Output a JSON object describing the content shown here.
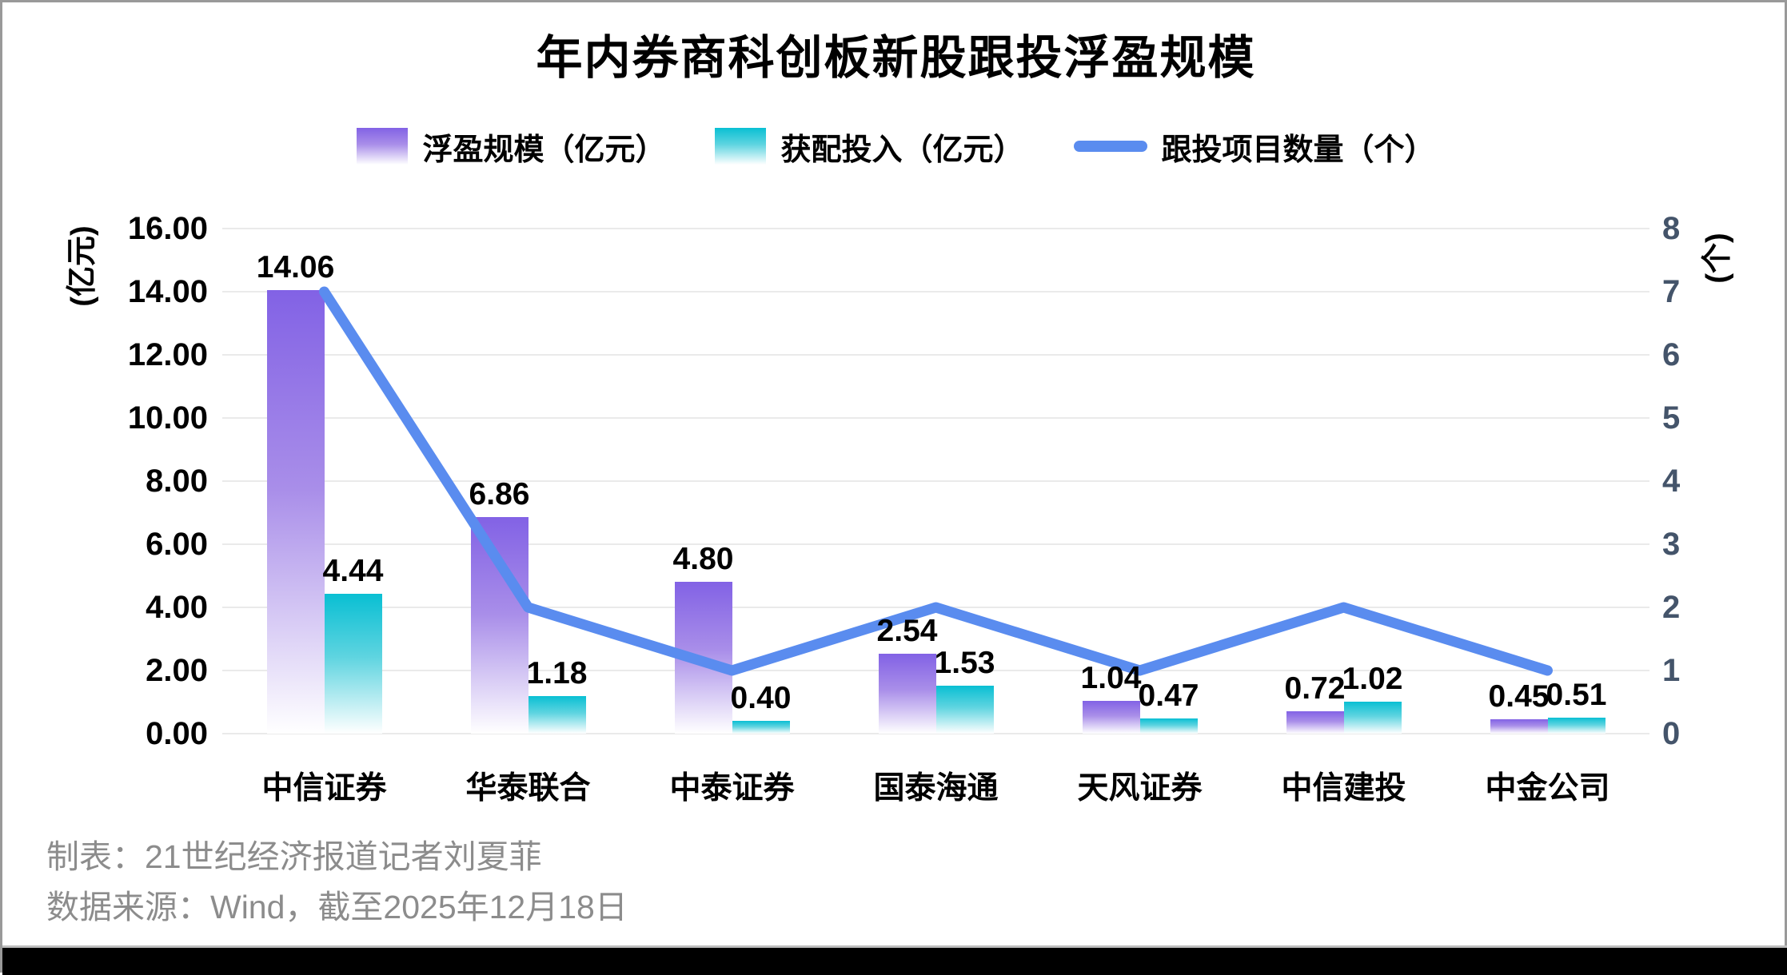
{
  "page": {
    "title": "年内券商科创板新股跟投浮盈规模",
    "footer_line1": "制表：21世纪经济报道记者刘夏菲",
    "footer_line2": "数据来源：Wind，截至2025年12月18日"
  },
  "chart_data": {
    "type": "bar",
    "subtype": "bar-line-combo",
    "categories": [
      "中信证券",
      "华泰联合",
      "中泰证券",
      "国泰海通",
      "天风证券",
      "中信建投",
      "中金公司"
    ],
    "series": [
      {
        "name": "浮盈规模（亿元）",
        "type": "bar",
        "axis": "left",
        "values": [
          14.06,
          6.86,
          4.8,
          2.54,
          1.04,
          0.72,
          0.45
        ]
      },
      {
        "name": "获配投入（亿元）",
        "type": "bar",
        "axis": "left",
        "values": [
          4.44,
          1.18,
          0.4,
          1.53,
          0.47,
          1.02,
          0.51
        ]
      },
      {
        "name": "跟投项目数量（个）",
        "type": "line",
        "axis": "right",
        "values": [
          7,
          2,
          1,
          2,
          1,
          2,
          1
        ]
      }
    ],
    "left_axis": {
      "title": "(亿元)",
      "min": 0,
      "max": 16,
      "step": 2,
      "tick_labels": [
        "0.00",
        "2.00",
        "4.00",
        "6.00",
        "8.00",
        "10.00",
        "12.00",
        "14.00",
        "16.00"
      ]
    },
    "right_axis": {
      "title": "(个)",
      "min": 0,
      "max": 8,
      "step": 1,
      "tick_labels": [
        "0",
        "1",
        "2",
        "3",
        "4",
        "5",
        "6",
        "7",
        "8"
      ]
    },
    "grid": true,
    "legend_position": "top",
    "bar_labels_visible": true,
    "bar_label_decimals": 2
  },
  "colors": {
    "bar1_top": "#8262E5",
    "bar1_mid": "#A98EE9",
    "bar2_top": "#09BFD3",
    "bar2_mid": "#5ED4E0",
    "bar_bottom": "#FFFFFF",
    "line": "#5A8CEF",
    "grid": "#EAEAEA",
    "right_axis_text": "#44546A",
    "footer_text": "#8C8C8C"
  }
}
